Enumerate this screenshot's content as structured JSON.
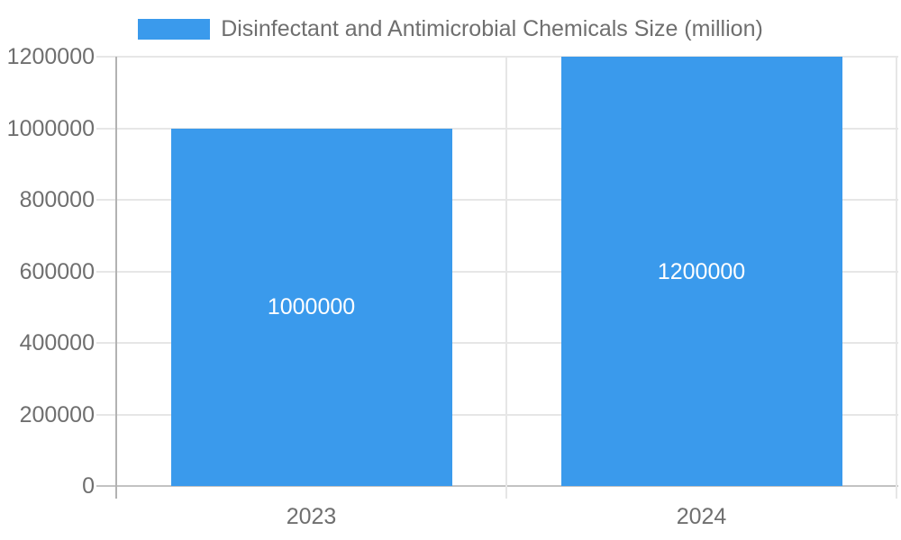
{
  "chart_data": {
    "type": "bar",
    "title": "Disinfectant and Antimicrobial Chemicals Size (million)",
    "categories": [
      "2023",
      "2024"
    ],
    "values": [
      1000000,
      1200000
    ],
    "bar_labels": [
      "1000000",
      "1200000"
    ],
    "ytick_values": [
      0,
      200000,
      400000,
      600000,
      800000,
      1000000,
      1200000
    ],
    "ytick_labels": [
      "0",
      "200000",
      "400000",
      "600000",
      "800000",
      "1000000",
      "1200000"
    ],
    "ylim": [
      0,
      1200000
    ],
    "grid": true,
    "legend_position": "top",
    "colors": {
      "bar": "#3A9AEC",
      "bar_label_text": "#ffffff",
      "axis_text": "#6f6f6f",
      "gridline": "#e6e6e6",
      "axis_line": "#b2b2b2",
      "zero_line": "#c3c3c3",
      "background": "#ffffff"
    }
  }
}
